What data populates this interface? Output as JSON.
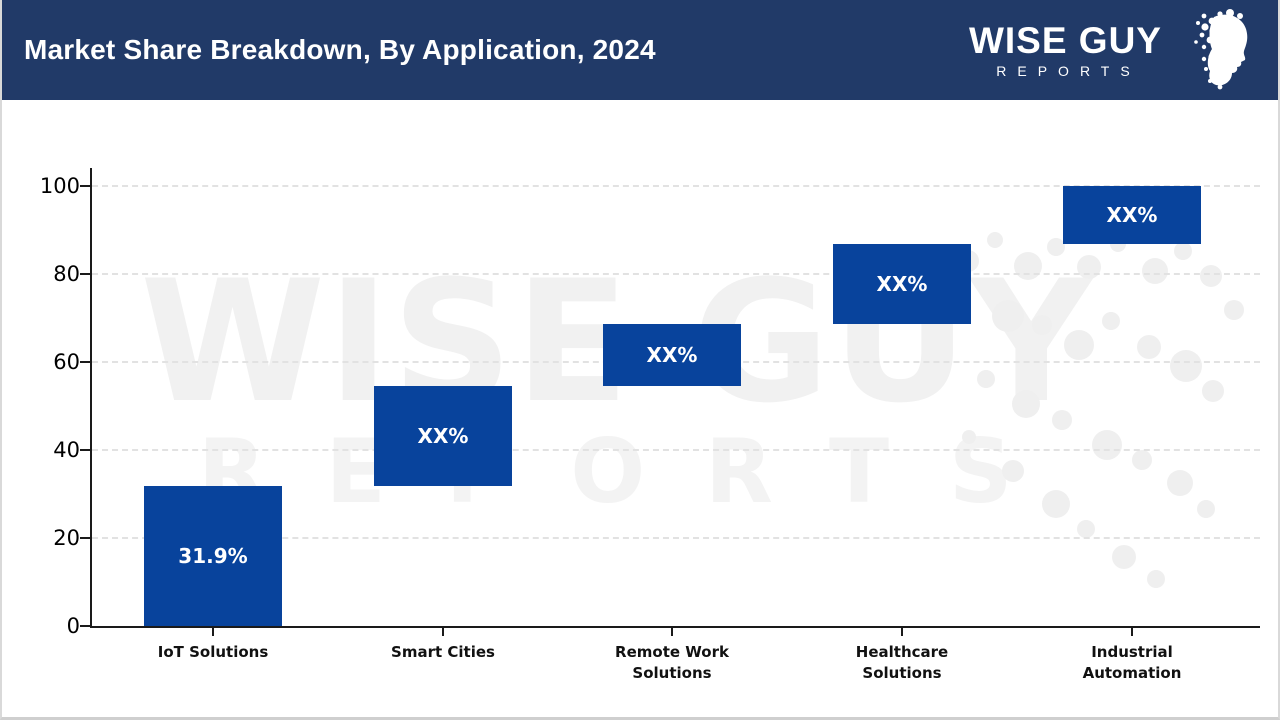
{
  "header": {
    "title": "Market Share Breakdown, By Application, 2024",
    "logo": {
      "line1": "WISE GUY",
      "line2": "REPORTS"
    }
  },
  "watermark": {
    "line1": "WISE GUY",
    "line2": "REPORTS"
  },
  "colors": {
    "header_bg": "#213a68",
    "bar": "#08439c",
    "bar_label": "#ffffff",
    "gridline": "#e2e2e2",
    "axis": "#1a1a1a",
    "watermark": "#f1f1f1"
  },
  "chart_data": {
    "type": "bar",
    "subtype": "waterfall",
    "title": "Market Share Breakdown, By Application, 2024",
    "categories": [
      "IoT Solutions",
      "Smart Cities",
      "Remote Work\nSolutions",
      "Healthcare\nSolutions",
      "Industrial\nAutomation"
    ],
    "segments": [
      {
        "category": "IoT Solutions",
        "start": 0,
        "end": 31.9,
        "value": 31.9,
        "label": "31.9%"
      },
      {
        "category": "Smart Cities",
        "start": 31.9,
        "end": 54.5,
        "value": 22.6,
        "label": "XX%"
      },
      {
        "category": "Remote Work Solutions",
        "start": 54.5,
        "end": 68.6,
        "value": 14.1,
        "label": "XX%"
      },
      {
        "category": "Healthcare Solutions",
        "start": 68.6,
        "end": 86.9,
        "value": 18.3,
        "label": "XX%"
      },
      {
        "category": "Industrial Automation",
        "start": 86.9,
        "end": 100,
        "value": 13.1,
        "label": "XX%"
      }
    ],
    "yticks": [
      0,
      20,
      40,
      60,
      80,
      100
    ],
    "ylim": [
      0,
      100
    ],
    "xlabel": "",
    "ylabel": "",
    "grid": "horizontal-dashed",
    "legend": "none",
    "bar_color": "#08439c",
    "bar_label_color": "#ffffff"
  }
}
